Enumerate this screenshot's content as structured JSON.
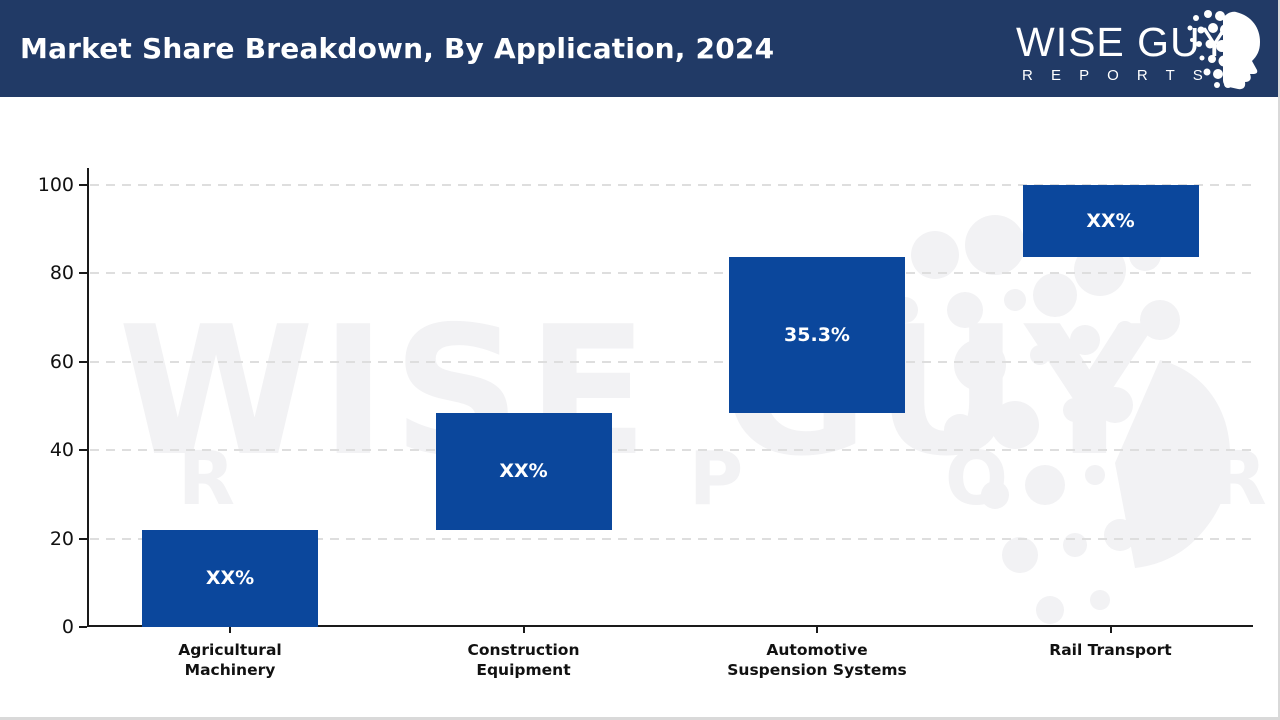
{
  "header": {
    "title": "Market Share Breakdown, By Application, 2024",
    "bg_color": "#213a66",
    "logo": {
      "line1": "WISE GUY",
      "line2": "R E P O R T S"
    }
  },
  "watermark": {
    "line1": "WISE GUY",
    "line2": "R E P O R T S"
  },
  "chart_data": {
    "type": "bar",
    "subtype": "floating-segment-waterfall",
    "title": "Market Share Breakdown, By Application, 2024",
    "xlabel": "",
    "ylabel": "",
    "ylim": [
      0,
      100
    ],
    "yticks": [
      0,
      20,
      40,
      60,
      80,
      100
    ],
    "grid": "horizontal-dashed",
    "legend": "none",
    "bar_color": "#0b479c",
    "categories": [
      "Agricultural Machinery",
      "Construction Equipment",
      "Automotive Suspension Systems",
      "Rail Transport"
    ],
    "bars": [
      {
        "category": "Agricultural Machinery",
        "category_lines": [
          "Agricultural",
          "Machinery"
        ],
        "start": 0,
        "end": 22,
        "value": 22,
        "label": "XX%"
      },
      {
        "category": "Construction Equipment",
        "category_lines": [
          "Construction",
          "Equipment"
        ],
        "start": 22,
        "end": 48.5,
        "value": 26.5,
        "label": "XX%"
      },
      {
        "category": "Automotive Suspension Systems",
        "category_lines": [
          "Automotive",
          "Suspension Systems"
        ],
        "start": 48.5,
        "end": 83.8,
        "value": 35.3,
        "label": "35.3%"
      },
      {
        "category": "Rail Transport",
        "category_lines": [
          "Rail Transport"
        ],
        "start": 83.8,
        "end": 100,
        "value": 16.2,
        "label": "XX%"
      }
    ]
  }
}
